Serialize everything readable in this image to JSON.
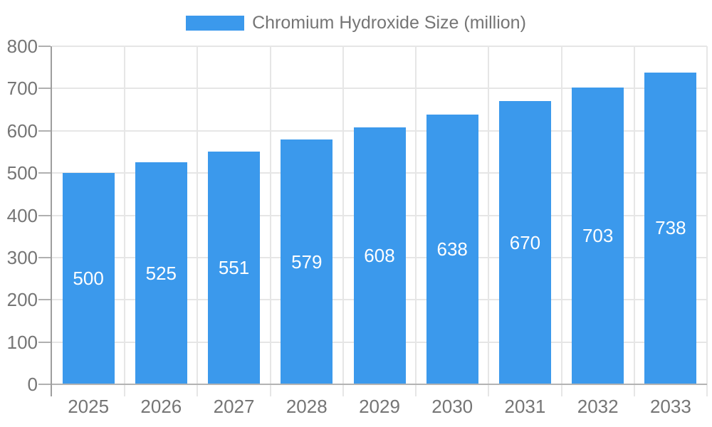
{
  "legend": {
    "label": "Chromium Hydroxide Size (million)"
  },
  "colors": {
    "bar": "#3B99EC",
    "axis_line": "#9E9E9E",
    "grid_line": "#E6E6E6",
    "baseline": "#B3B3B3",
    "tick_mark": "#B0B0B0",
    "tick_text": "#757575",
    "value_label_text": "#FFFFFF"
  },
  "chart_data": {
    "type": "bar",
    "title": "Chromium Hydroxide Size (million)",
    "categories": [
      "2025",
      "2026",
      "2027",
      "2028",
      "2029",
      "2030",
      "2031",
      "2032",
      "2033"
    ],
    "values": [
      500,
      525,
      551,
      579,
      608,
      638,
      670,
      703,
      738
    ],
    "xlabel": "",
    "ylabel": "",
    "ylim": [
      0,
      800
    ],
    "yticks": [
      0,
      100,
      200,
      300,
      400,
      500,
      600,
      700,
      800
    ],
    "grid": true,
    "legend_position": "top-center",
    "bar_value_labels": true
  }
}
